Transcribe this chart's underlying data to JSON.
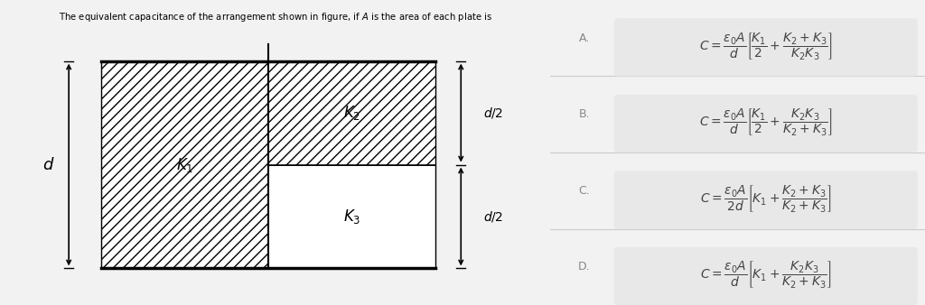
{
  "title": "The equivalent capacitance of the arrangement shown in figure, if $A$ is the area of each plate is",
  "bg_left": "#f2f2f2",
  "bg_right": "#f2f2f2",
  "option_box_color": "#ebebeb",
  "option_label_color": "#888888",
  "option_text_color": "#444444",
  "options": [
    {
      "label": "A.",
      "formula_a": "$C = \\dfrac{\\varepsilon_0 A}{d}$",
      "formula_b": "$\\left[\\dfrac{K_1}{2} + \\dfrac{K_2 + K_3}{K_2 K_3}\\right]$"
    },
    {
      "label": "B.",
      "formula_a": "$C = \\dfrac{\\varepsilon_0 A}{d}$",
      "formula_b": "$\\left[\\dfrac{K_1}{2} + \\dfrac{K_2 K_3}{K_2 + K_3}\\right]$"
    },
    {
      "label": "C.",
      "formula_a": "$C = \\dfrac{\\varepsilon_0 A}{2d}$",
      "formula_b": "$\\left[K_1 + \\dfrac{K_2 + K_3}{K_2 + K_3}\\right]$"
    },
    {
      "label": "D.",
      "formula_a": "$C = \\dfrac{\\varepsilon_0 A}{d}$",
      "formula_b": "$\\left[K_1 + \\dfrac{K_2 K_3}{K_2 + K_3}\\right]$"
    }
  ]
}
